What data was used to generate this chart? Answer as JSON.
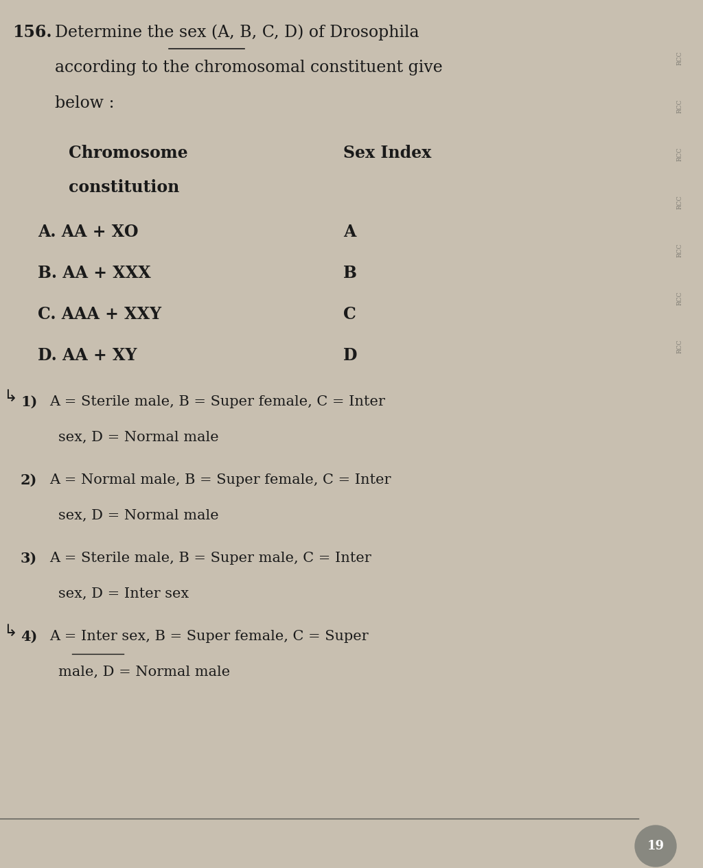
{
  "background_color": "#c8bfb0",
  "title_number": "156.",
  "title_line1_pre": "Determine the sex ",
  "title_line1_under": "(A, B, C, D)",
  "title_line1_post": " of Drosophila",
  "title_line2": "according to the chromosomal constituent give",
  "title_line3": "below :",
  "col_header1": "Chromosome",
  "col_header2": "Sex Index",
  "col_header3": "constitution",
  "rows": [
    [
      "A. AA + XO",
      "A"
    ],
    [
      "B. AA + XXX",
      "B"
    ],
    [
      "C. AAA + XXY",
      "C"
    ],
    [
      "D. AA + XY",
      "D"
    ]
  ],
  "opt1_line1": "A = Sterile male, B = Super female, C = Inter",
  "opt1_line2": "sex, D = Normal male",
  "opt2_line1": "A = Normal male, B = Super female, C = Inter",
  "opt2_line2": "sex, D = Normal male",
  "opt3_line1": "A = Sterile male, B = Super male, C = Inter",
  "opt3_line2": "sex, D = Inter sex",
  "opt4_line1_pre": "A = ",
  "opt4_line1_under": "Inter sex",
  "opt4_line1_post": ", B = Super female, C = Super",
  "opt4_line2": "male, D = Normal male",
  "page_number": "19",
  "text_color": "#1a1a1a",
  "font_size_title": 17,
  "font_size_body": 16,
  "font_size_options": 15
}
